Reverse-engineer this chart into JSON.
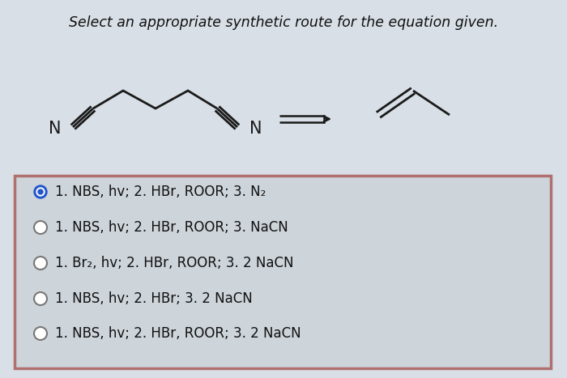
{
  "title": "Select an appropriate synthetic route for the equation given.",
  "title_fontsize": 12.5,
  "background_color": "#d8dfe6",
  "box_background": "#d8dfe6",
  "box_border_color": "#b07070",
  "options": [
    {
      "text": "1. NBS, hv; 2. HBr, ROOR; 3. N₂",
      "selected": true
    },
    {
      "text": "1. NBS, hv; 2. HBr, ROOR; 3. NaCN",
      "selected": false
    },
    {
      "text": "1. Br₂, hv; 2. HBr, ROOR; 3. 2 NaCN",
      "selected": false
    },
    {
      "text": "1. NBS, hv; 2. HBr; 3. 2 NaCN",
      "selected": false
    },
    {
      "text": "1. NBS, hv; 2. HBr, ROOR; 3. 2 NaCN",
      "selected": false
    }
  ],
  "selected_color": "#2255cc",
  "unselected_color": "#888888",
  "text_color": "#111111",
  "font_size": 12,
  "mol_color": "#1a1a1a",
  "mol_lw": 2.0,
  "fig_w": 7.0,
  "fig_h": 4.67,
  "dpi": 100
}
